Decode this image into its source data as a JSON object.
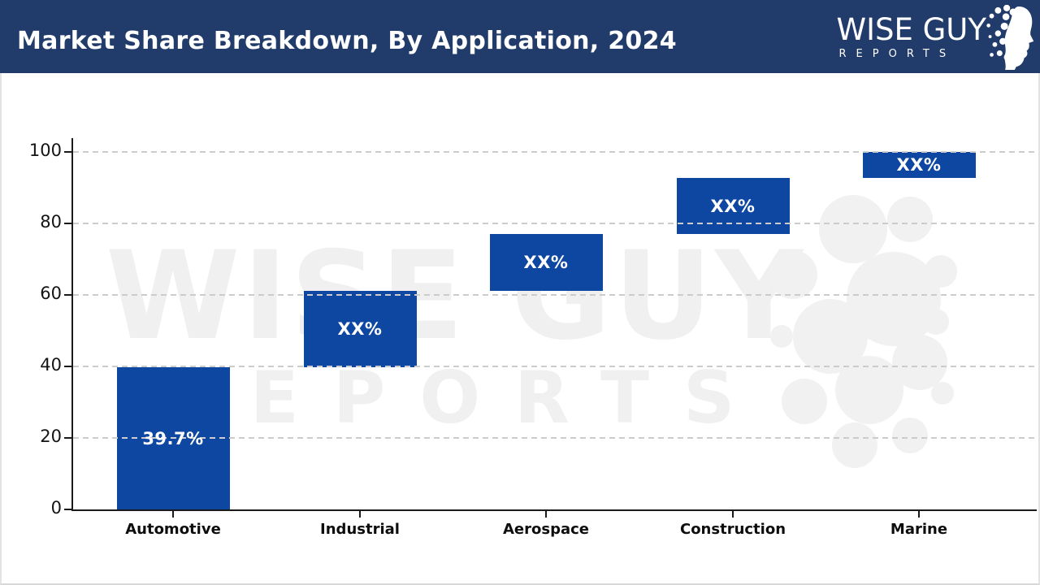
{
  "header": {
    "title": "Market Share Breakdown, By Application, 2024",
    "logo": {
      "name": "WISE GUY",
      "subtitle": "REPORTS"
    }
  },
  "watermark": {
    "line1": "WISE GUY",
    "line2": "REPORTS"
  },
  "colors": {
    "header_bg": "#213c6b",
    "bar": "#0d47a1",
    "bar_label": "#ffffff",
    "gridline": "#cccccc",
    "axis": "#1a1a1a",
    "tick_label": "#141414",
    "watermark": "#f0f0f0"
  },
  "chart_data": {
    "type": "bar",
    "subtype": "waterfall",
    "title": "Market Share Breakdown, By Application, 2024",
    "xlabel": "",
    "ylabel": "",
    "categories": [
      "Automotive",
      "Industrial",
      "Aerospace",
      "Construction",
      "Marine"
    ],
    "segments": [
      {
        "category": "Automotive",
        "start": 0,
        "end": 39.7,
        "value": 39.7,
        "label": "39.7%"
      },
      {
        "category": "Industrial",
        "start": 39.7,
        "end": 61.1,
        "value": 21.4,
        "label": "XX%"
      },
      {
        "category": "Aerospace",
        "start": 61.1,
        "end": 77.0,
        "value": 15.9,
        "label": "XX%"
      },
      {
        "category": "Construction",
        "start": 77.0,
        "end": 92.7,
        "value": 15.7,
        "label": "XX%"
      },
      {
        "category": "Marine",
        "start": 92.7,
        "end": 100.0,
        "value": 7.3,
        "label": "XX%"
      }
    ],
    "y_axis": {
      "ticks": [
        0,
        20,
        40,
        60,
        80,
        100
      ],
      "range": [
        0,
        105
      ]
    },
    "grid": "horizontal-dashed",
    "legend": "none"
  }
}
